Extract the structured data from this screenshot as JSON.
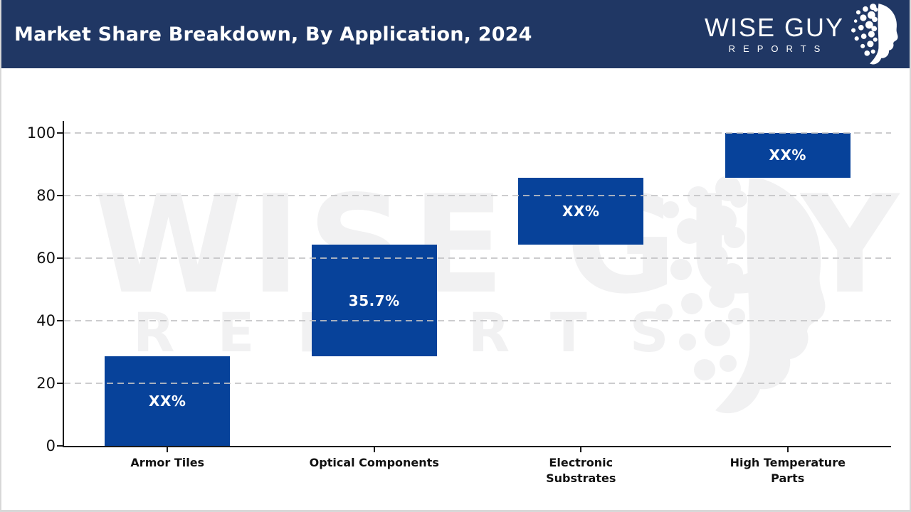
{
  "header": {
    "title": "Market Share Breakdown, By Application, 2024",
    "bg_color": "#203764",
    "logo": {
      "line1": "WISE GUY",
      "line2": "REPORTS"
    }
  },
  "watermark": {
    "line1": "WISE GUY",
    "line2": "REPORTS"
  },
  "chart_data": {
    "type": "bar",
    "subtype": "floating-waterfall",
    "title": "Market Share Breakdown, By Application, 2024",
    "categories": [
      "Armor Tiles",
      "Optical Components",
      "Electronic\nSubstrates",
      "High Temperature\nParts"
    ],
    "segments": [
      {
        "category": "Armor Tiles",
        "start": 0,
        "end": 28.6,
        "value": 28.6,
        "label": "XX%"
      },
      {
        "category": "Optical Components",
        "start": 28.6,
        "end": 64.3,
        "value": 35.7,
        "label": "35.7%"
      },
      {
        "category": "Electronic Substrates",
        "start": 64.3,
        "end": 85.7,
        "value": 21.4,
        "label": "XX%"
      },
      {
        "category": "High Temperature Parts",
        "start": 85.7,
        "end": 100,
        "value": 14.3,
        "label": "XX%"
      }
    ],
    "ylim": [
      0,
      100
    ],
    "yticks": [
      0,
      20,
      40,
      60,
      80,
      100
    ],
    "xlabel": "",
    "ylabel": "",
    "bar_color": "#07429A",
    "grid": "horizontal-dashed, drawn over bars",
    "legend_position": "none"
  }
}
